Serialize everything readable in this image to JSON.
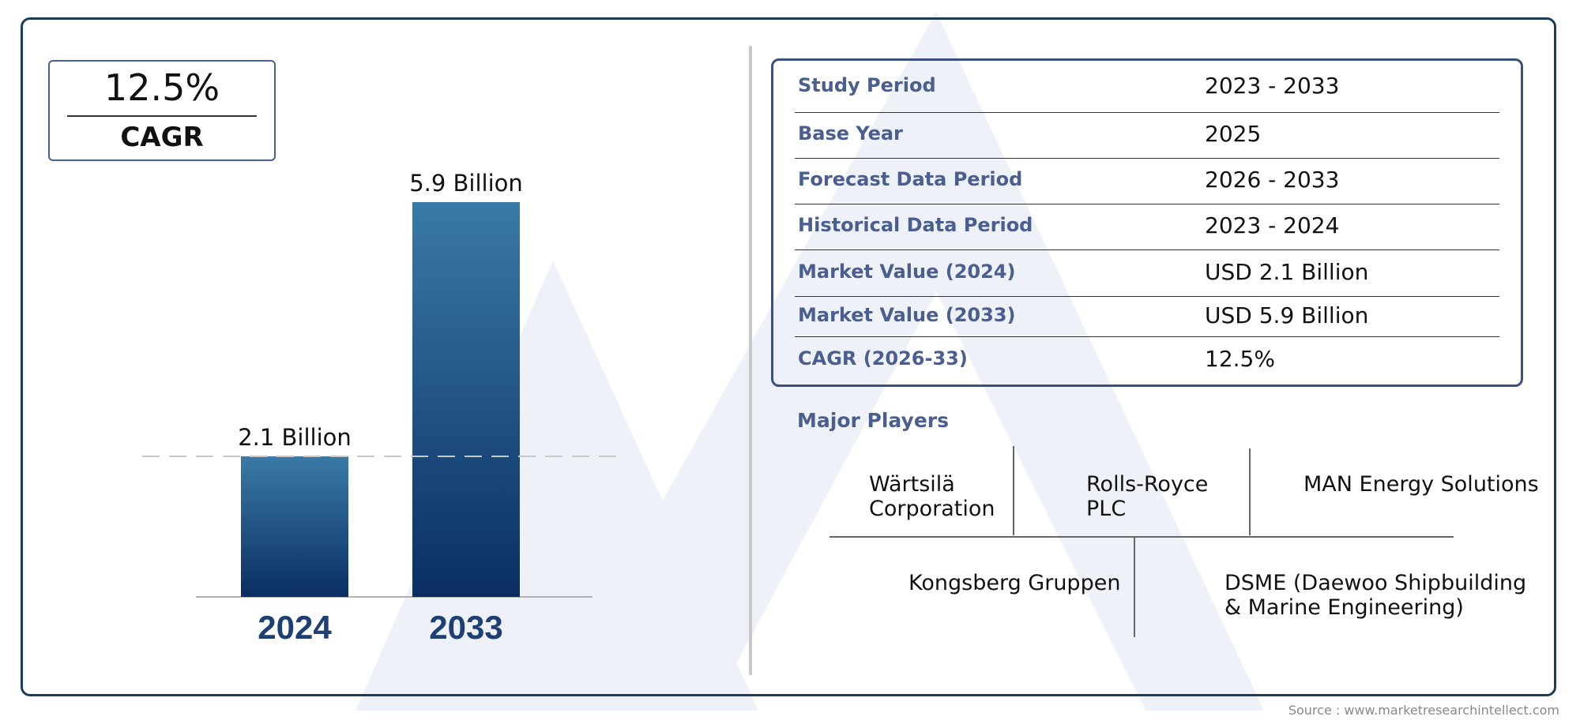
{
  "cagr_box": {
    "value": "12.5%",
    "label": "CAGR"
  },
  "chart_data": {
    "type": "bar",
    "categories": [
      "2024",
      "2033"
    ],
    "values": [
      2.1,
      5.9
    ],
    "data_labels": [
      "2.1 Billion",
      "5.9 Billion"
    ],
    "title": "",
    "xlabel": "",
    "ylabel": "",
    "reference_line_at": 2.1,
    "colors": {
      "bar_top": "#3a7aa6",
      "bar_bottom": "#0a2e64",
      "category_label": "#1e3f73"
    }
  },
  "table": {
    "rows": [
      {
        "key": "Study Period",
        "value": "2023 - 2033"
      },
      {
        "key": "Base Year",
        "value": "2025"
      },
      {
        "key": "Forecast Data Period",
        "value": "2026 - 2033"
      },
      {
        "key": "Historical Data Period",
        "value": "2023 - 2024"
      },
      {
        "key": "Market Value (2024)",
        "value": "USD 2.1 Billion"
      },
      {
        "key": "Market Value (2033)",
        "value": "USD 5.9 Billion"
      },
      {
        "key": "CAGR (2026-33)",
        "value": "12.5%"
      }
    ]
  },
  "players": {
    "title": "Major Players",
    "items": [
      {
        "line1": "Wärtsilä",
        "line2": "Corporation"
      },
      {
        "line1": "Rolls-Royce",
        "line2": "PLC"
      },
      {
        "line1": "MAN Energy Solutions",
        "line2": ""
      },
      {
        "line1": "Kongsberg Gruppen",
        "line2": ""
      },
      {
        "line1": "DSME (Daewoo Shipbuilding",
        "line2": "& Marine Engineering)"
      }
    ]
  },
  "source": "Source : www.marketresearchintellect.com"
}
